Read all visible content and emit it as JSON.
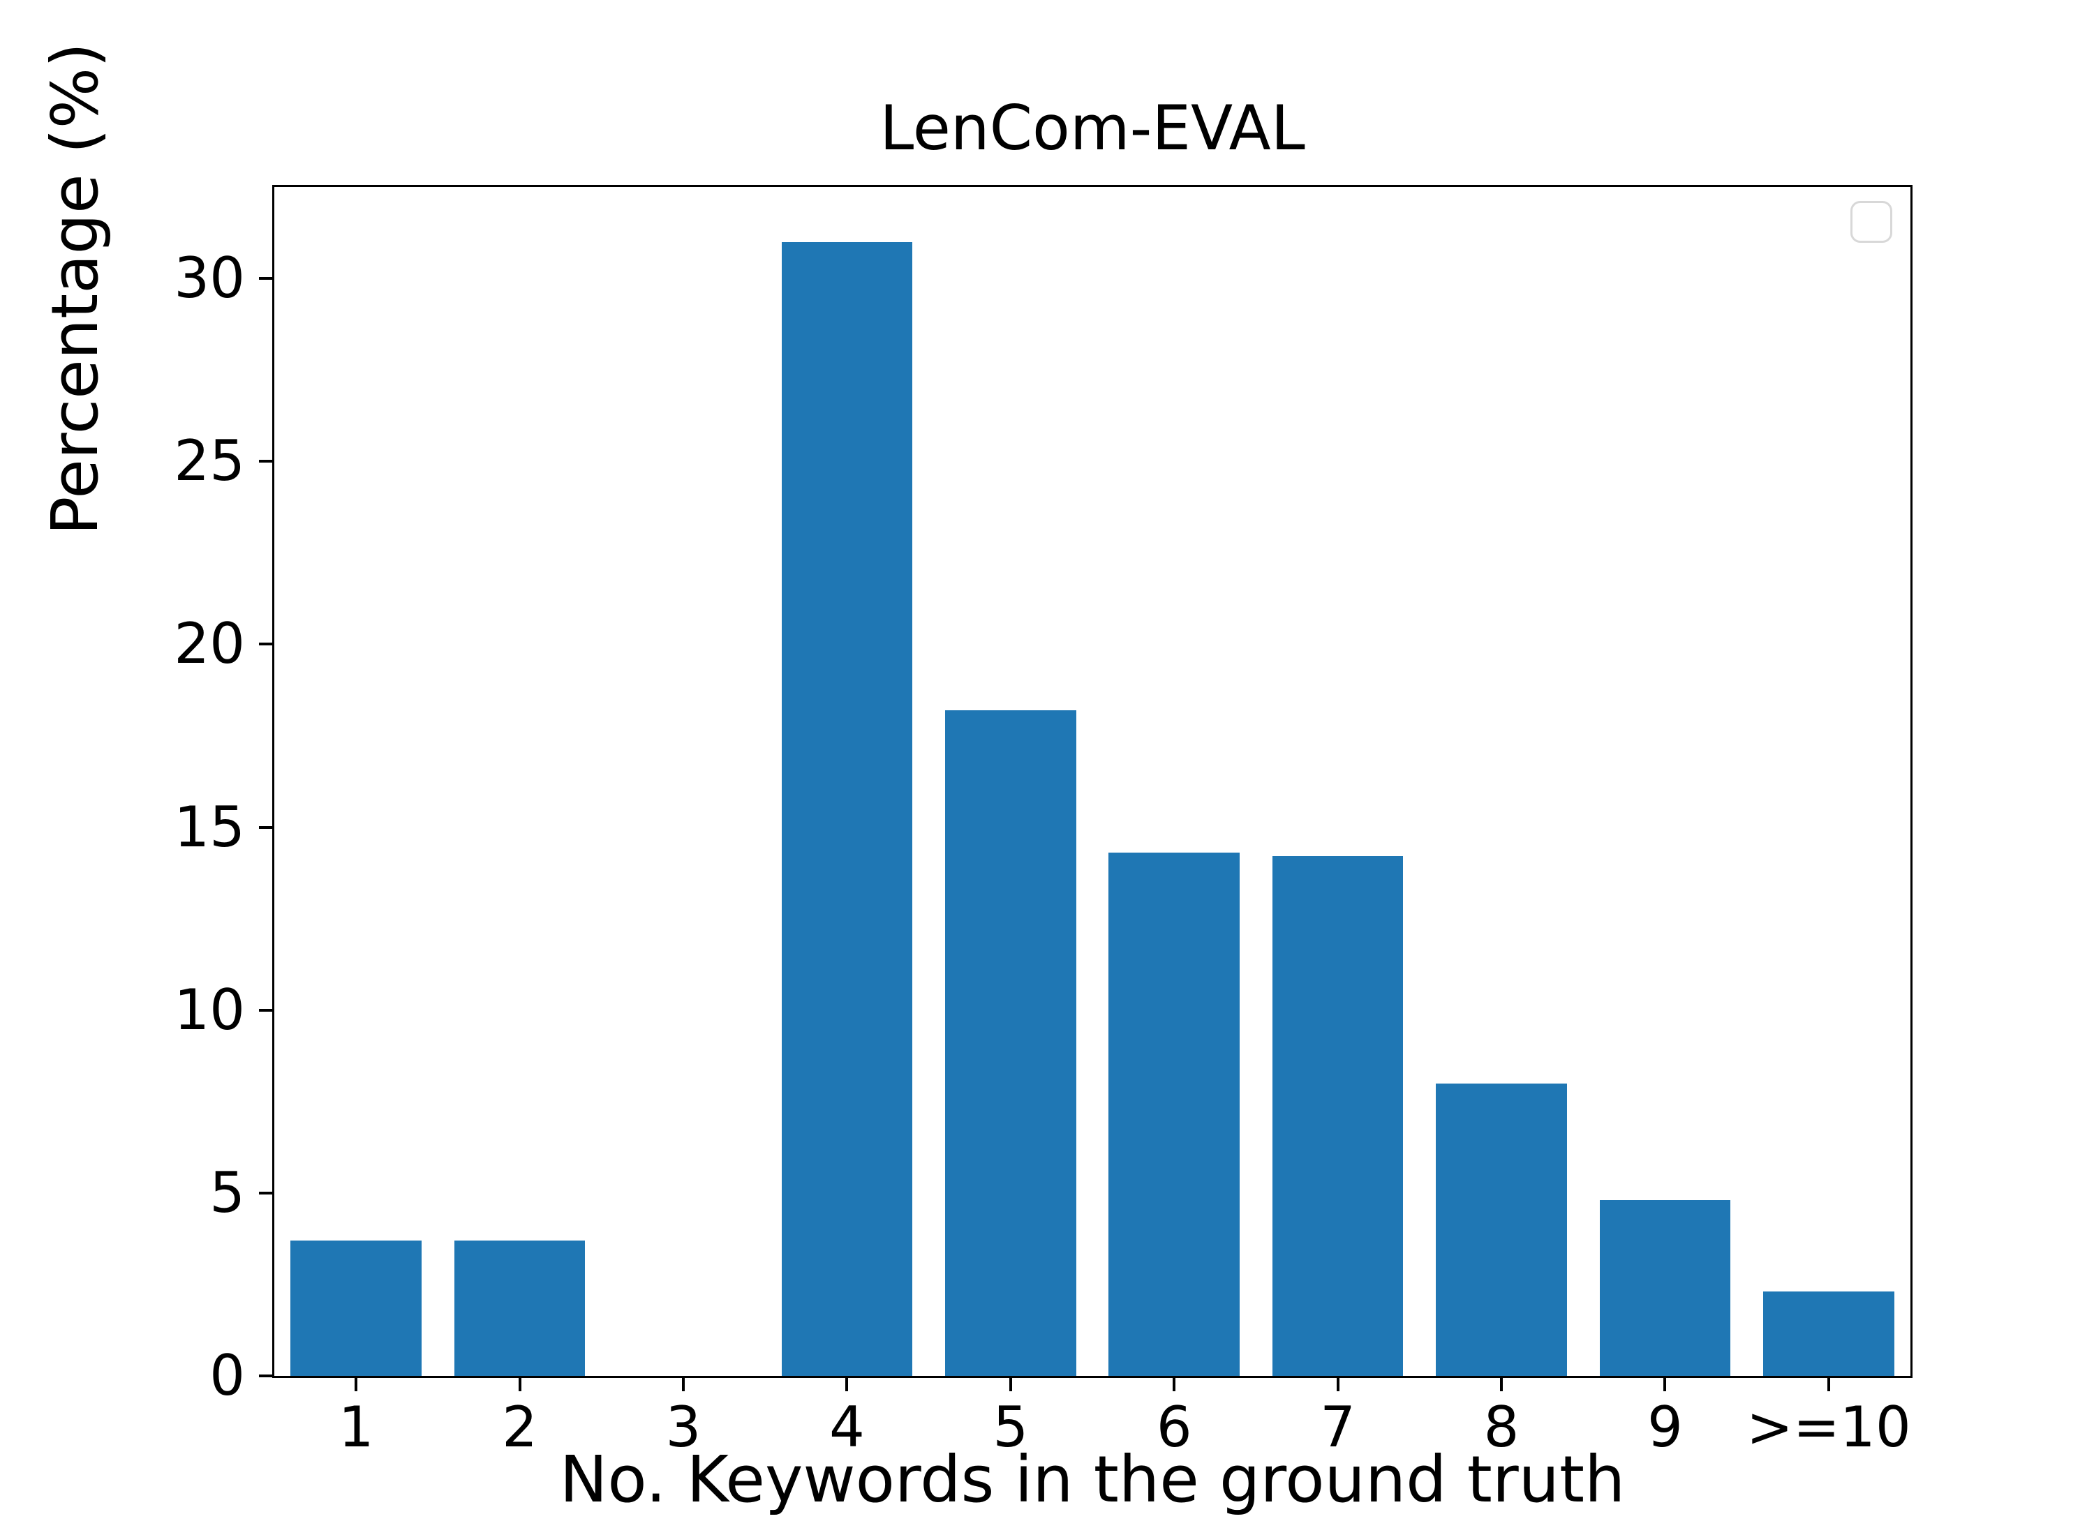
{
  "chart_data": {
    "type": "bar",
    "title": "LenCom-EVAL",
    "xlabel": "No. Keywords in the ground truth",
    "ylabel": "Percentage (%)",
    "categories": [
      "1",
      "2",
      "3",
      "4",
      "5",
      "6",
      "7",
      "8",
      "9",
      ">=10"
    ],
    "values": [
      3.7,
      3.7,
      0,
      31.0,
      18.2,
      14.3,
      14.2,
      8.0,
      4.8,
      2.3
    ],
    "ylim": [
      0,
      32.5
    ],
    "yticks": [
      0,
      5,
      10,
      15,
      20,
      25,
      30
    ],
    "bar_color": "#1f77b4",
    "grid": false,
    "legend": {
      "visible": true,
      "position": "upper-right",
      "entries": []
    }
  }
}
